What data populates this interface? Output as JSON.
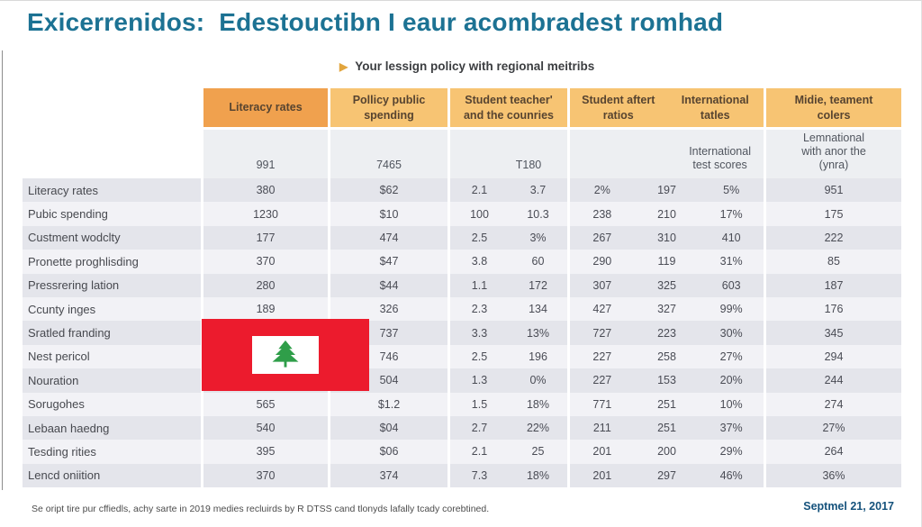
{
  "title": "Exicerrenidos:  Edestouctibn I eaur acombradest romhad",
  "subtitle": {
    "arrow_icon": "▶",
    "text": "Your lessign policy with regional meitribs"
  },
  "table": {
    "columns": [
      {
        "header": "Literacy rates",
        "subheader": "991"
      },
      {
        "header": "Pollicy public\nspending",
        "subheader": "7465"
      },
      {
        "header": "Student teacher'\nand the counries",
        "subheader": "T180"
      },
      {
        "header_left": "Student aftert\nratios",
        "header_right": "International\ntatles",
        "subheader": "International\ntest scores"
      },
      {
        "header": "Midie, teament\ncolers",
        "subheader": "Lemnational\nwith anor the\n(ynra)"
      }
    ],
    "rows": [
      {
        "label": "Literacy rates",
        "a": "380",
        "b": "$62",
        "c": [
          "2.1",
          "3.7"
        ],
        "d": [
          "2%",
          "197",
          "5%"
        ],
        "e": "951"
      },
      {
        "label": "Pubic spending",
        "a": "1230",
        "b": "$10",
        "c": [
          "100",
          "10.3"
        ],
        "d": [
          "238",
          "210",
          "17%"
        ],
        "e": "175"
      },
      {
        "label": "Custment wodclty",
        "a": "177",
        "b": "474",
        "c": [
          "2.5",
          "3%"
        ],
        "d": [
          "267",
          "310",
          "410"
        ],
        "e": "222"
      },
      {
        "label": "Pronette proghlisding",
        "a": "370",
        "b": "$47",
        "c": [
          "3.8",
          "60"
        ],
        "d": [
          "290",
          "119",
          "31%"
        ],
        "e": "85"
      },
      {
        "label": "Pressrering lation",
        "a": "280",
        "b": "$44",
        "c": [
          "1.1",
          "172"
        ],
        "d": [
          "307",
          "325",
          "603"
        ],
        "e": "187"
      },
      {
        "label": "Ccunty inges",
        "a": "189",
        "b": "326",
        "c": [
          "2.3",
          "134"
        ],
        "d": [
          "427",
          "327",
          "99%"
        ],
        "e": "176"
      },
      {
        "label": "Sratled franding",
        "a": "",
        "b": "737",
        "c": [
          "3.3",
          "13%"
        ],
        "d": [
          "727",
          "223",
          "30%"
        ],
        "e": "345",
        "flag_row": true
      },
      {
        "label": "Nest pericol",
        "a": "",
        "b": "746",
        "c": [
          "2.5",
          "196"
        ],
        "d": [
          "227",
          "258",
          "27%"
        ],
        "e": "294",
        "flag_row": true
      },
      {
        "label": "Nouration",
        "a": "",
        "b": "504",
        "c": [
          "1.3",
          "0%"
        ],
        "d": [
          "227",
          "153",
          "20%"
        ],
        "e": "244",
        "flag_row": true
      },
      {
        "label": "Sorugohes",
        "a": "565",
        "b": "$1.2",
        "c": [
          "1.5",
          "18%"
        ],
        "d": [
          "771",
          "251",
          "10%"
        ],
        "e": "274"
      },
      {
        "label": "Lebaan haedng",
        "a": "540",
        "b": "$04",
        "c": [
          "2.7",
          "22%"
        ],
        "d": [
          "211",
          "251",
          "37%"
        ],
        "e": "27%"
      },
      {
        "label": "Tesding rities",
        "a": "395",
        "b": "$06",
        "c": [
          "2.1",
          "25"
        ],
        "d": [
          "201",
          "200",
          "29%"
        ],
        "e": "264"
      },
      {
        "label": "Lencd oniition",
        "a": "370",
        "b": "374",
        "c": [
          "7.3",
          "18%"
        ],
        "d": [
          "201",
          "297",
          "46%"
        ],
        "e": "36%"
      }
    ]
  },
  "flag": {
    "country": "lebanon-flag",
    "colors": {
      "red": "#ec1b2d",
      "white": "#ffffff",
      "green": "#2f9e49"
    }
  },
  "footer": {
    "note": "Se oript tire pur cffiedls, achy sarte in 2019 medies recluirds by R DTSS cand tlonyds lafally tcady corebtined.",
    "date": "Septmel 21, 2017"
  },
  "colors": {
    "title": "#1c7293",
    "accent_arrow": "#e2a53e",
    "header_bg": "#f7c473",
    "header_bg_highlight": "#f0a14e",
    "row_dark": "#e4e5eb",
    "row_light": "#f2f2f6",
    "subheader_bg": "#edeff2",
    "date": "#15527c"
  }
}
